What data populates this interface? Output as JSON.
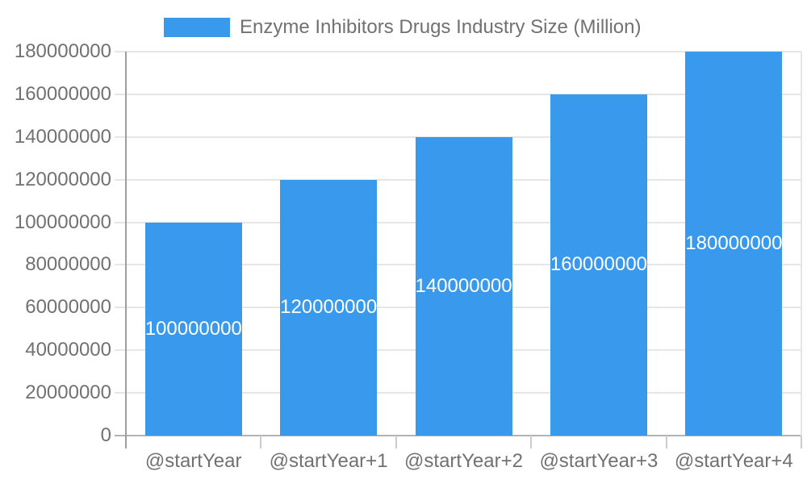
{
  "legend": {
    "label": "Enzyme Inhibitors Drugs Industry Size (Million)"
  },
  "chart_data": {
    "type": "bar",
    "title": "",
    "categories": [
      "@startYear",
      "@startYear+1",
      "@startYear+2",
      "@startYear+3",
      "@startYear+4"
    ],
    "series": [
      {
        "name": "Enzyme Inhibitors Drugs Industry Size (Million)",
        "values": [
          100000000,
          120000000,
          140000000,
          160000000,
          180000000
        ]
      }
    ],
    "bar_value_labels": [
      "100000000",
      "120000000",
      "140000000",
      "160000000",
      "180000000"
    ],
    "xlabel": "",
    "ylabel": "",
    "ylim": [
      0,
      180000000
    ],
    "yticks": [
      0,
      20000000,
      40000000,
      60000000,
      80000000,
      100000000,
      120000000,
      140000000,
      160000000,
      180000000
    ],
    "ytick_labels": [
      "0",
      "20000000",
      "40000000",
      "60000000",
      "80000000",
      "100000000",
      "120000000",
      "140000000",
      "160000000",
      "180000000"
    ],
    "grid": true,
    "legend_position": "top",
    "colors": {
      "bar": "#3999EC",
      "axis_text": "#717171",
      "bar_label_text": "#FFFFFF",
      "gridline": "#E6E6E6",
      "baseline": "#B3B3B3",
      "axis_line": "#9E9E9E",
      "tick": "#CCCCCC"
    }
  }
}
